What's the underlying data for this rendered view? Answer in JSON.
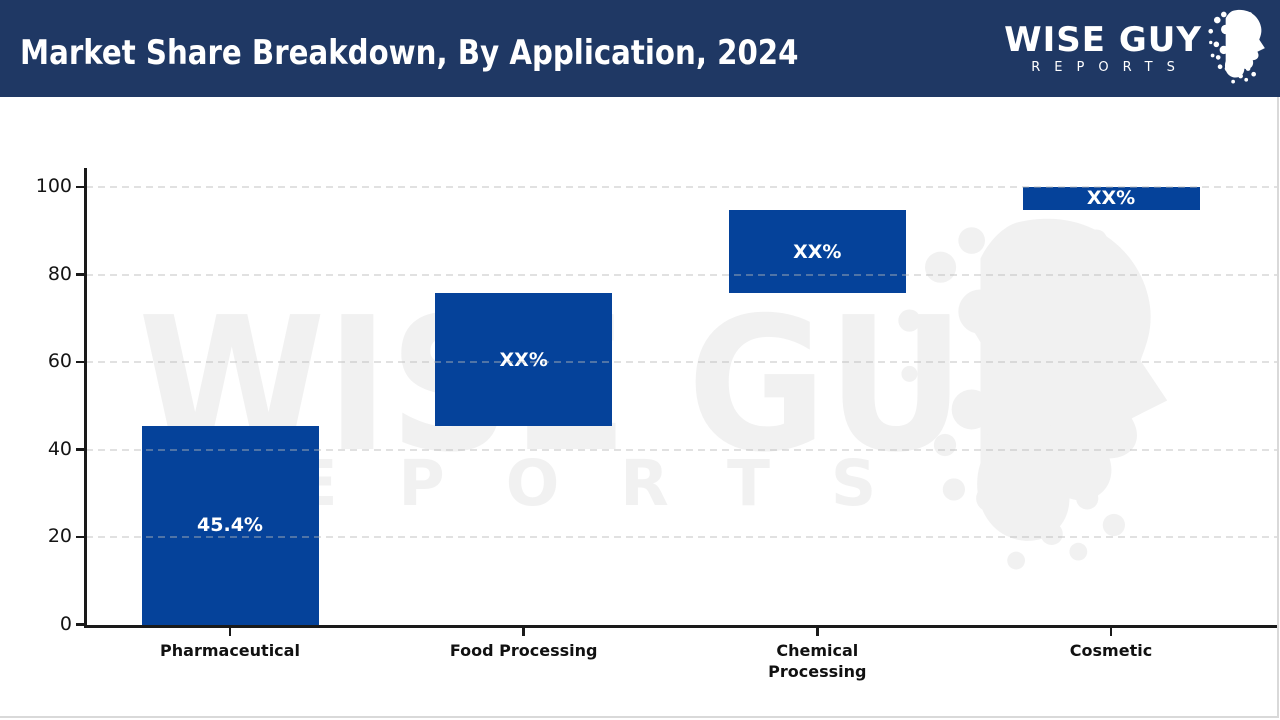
{
  "header": {
    "title": "Market Share Breakdown, By Application, 2024",
    "logo": {
      "line1": "WISE GUY",
      "line2": "REPORTS"
    }
  },
  "watermark": {
    "line1": "WISE GUY",
    "line2": "REPORTS"
  },
  "chart_data": {
    "type": "bar",
    "subtype": "waterfall",
    "title": "Market Share Breakdown, By Application, 2024",
    "categories": [
      "Pharmaceutical",
      "Food Processing",
      "Chemical Processing",
      "Cosmetic"
    ],
    "segments": [
      {
        "category": "Pharmaceutical",
        "start": 0,
        "end": 45.4,
        "label": "45.4%"
      },
      {
        "category": "Food Processing",
        "start": 45.4,
        "end": 75.7,
        "label": "XX%"
      },
      {
        "category": "Chemical Processing",
        "start": 75.7,
        "end": 94.8,
        "label": "XX%"
      },
      {
        "category": "Cosmetic",
        "start": 94.8,
        "end": 100,
        "label": "XX%"
      }
    ],
    "xlabel": "",
    "ylabel": "",
    "ylim": [
      0,
      100
    ],
    "yticks": [
      0,
      20,
      40,
      60,
      80,
      100
    ],
    "grid": "horizontal-dashed",
    "legend": "none",
    "colors": {
      "bar": "#05429a",
      "bar_label": "#ffffff",
      "header_bg": "#1f3864",
      "axis": "#1a1a1a",
      "grid": "#b8b8b8",
      "watermark": "#f1f1f1"
    }
  }
}
